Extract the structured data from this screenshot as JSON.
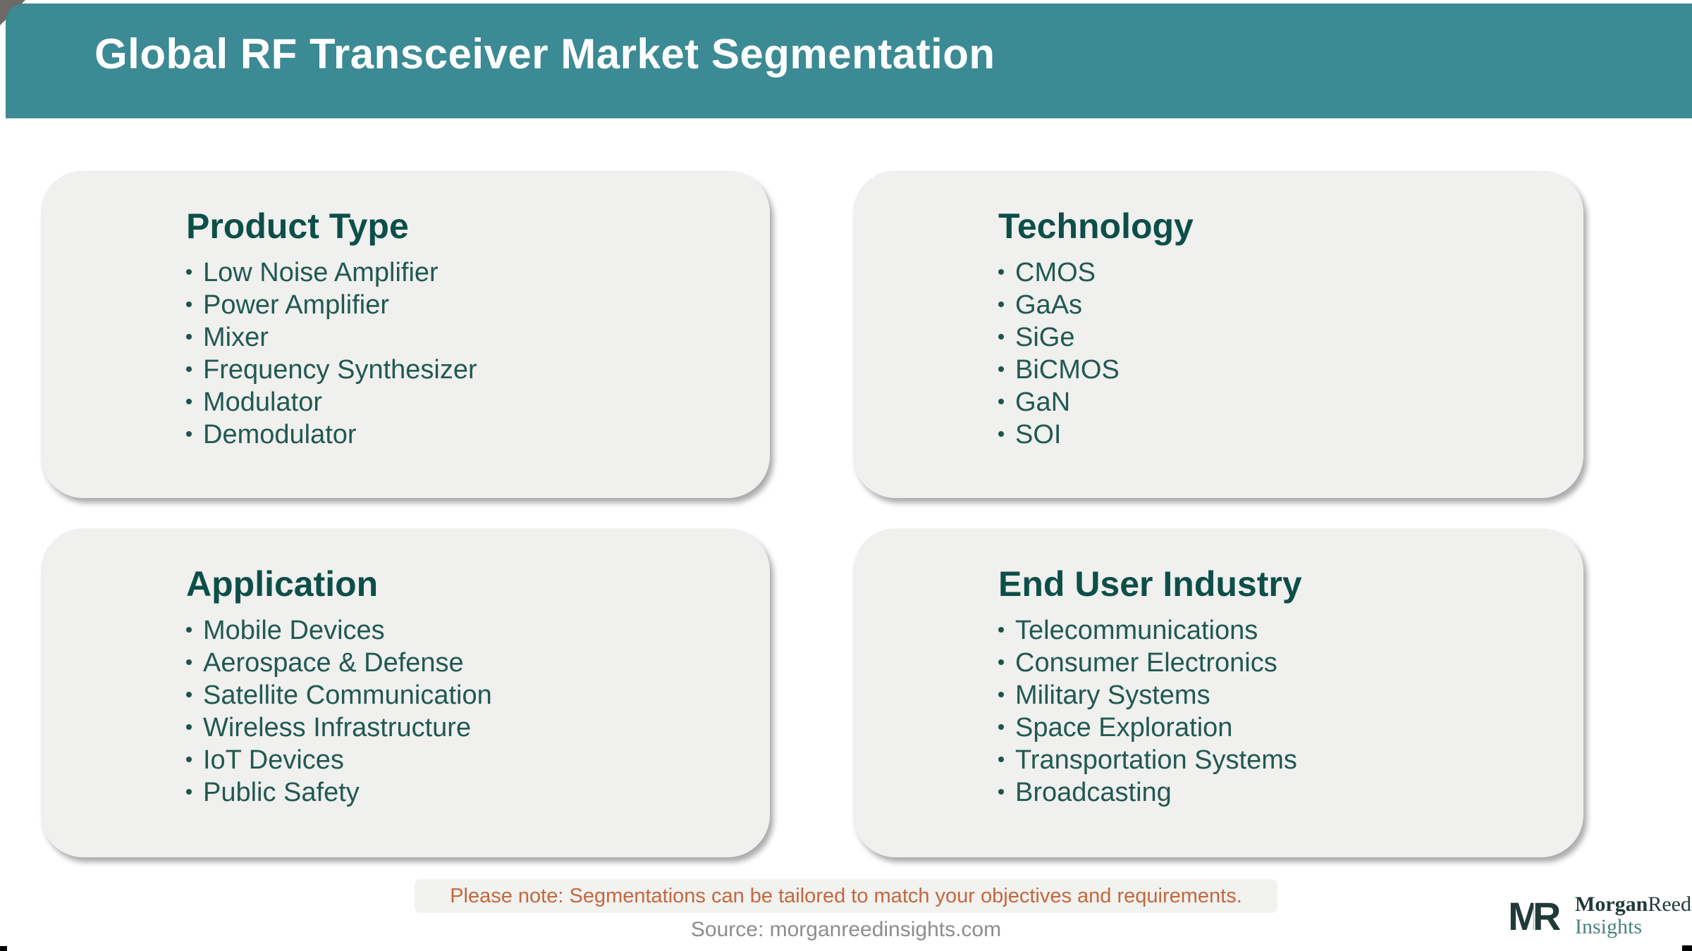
{
  "header": {
    "title": "Global RF Transceiver Market Segmentation"
  },
  "cards": [
    {
      "title": "Product Type",
      "items": [
        "Low Noise Amplifier",
        "Power Amplifier",
        "Mixer",
        "Frequency Synthesizer",
        "Modulator",
        "Demodulator"
      ]
    },
    {
      "title": "Technology",
      "items": [
        "CMOS",
        "GaAs",
        "SiGe",
        "BiCMOS",
        "GaN",
        "SOI"
      ]
    },
    {
      "title": "Application",
      "items": [
        "Mobile Devices",
        "Aerospace & Defense",
        "Satellite Communication",
        "Wireless Infrastructure",
        "IoT Devices",
        "Public Safety"
      ]
    },
    {
      "title": "End User Industry",
      "items": [
        "Telecommunications",
        "Consumer Electronics",
        "Military Systems",
        "Space Exploration",
        "Transportation Systems",
        "Broadcasting"
      ]
    }
  ],
  "note": {
    "text": "Please note: Segmentations can be tailored to match your objectives and requirements."
  },
  "source": {
    "text": "Source: morganreedinsights.com"
  },
  "logo": {
    "monogram_m": "M",
    "monogram_r": "R",
    "name_bold": "Morgan",
    "name_regular": "Reed",
    "tagline": "Insights"
  },
  "colors": {
    "header_teal": "#3b8a94",
    "card_bg": "#f0f0ee",
    "heading_green": "#0d4f48",
    "item_green": "#215951",
    "note_orange": "#c4673c",
    "note_bg": "#f2f2f0",
    "source_gray": "#8d8d8d",
    "logo_dark": "#203a38",
    "logo_teal": "#4a837c"
  }
}
